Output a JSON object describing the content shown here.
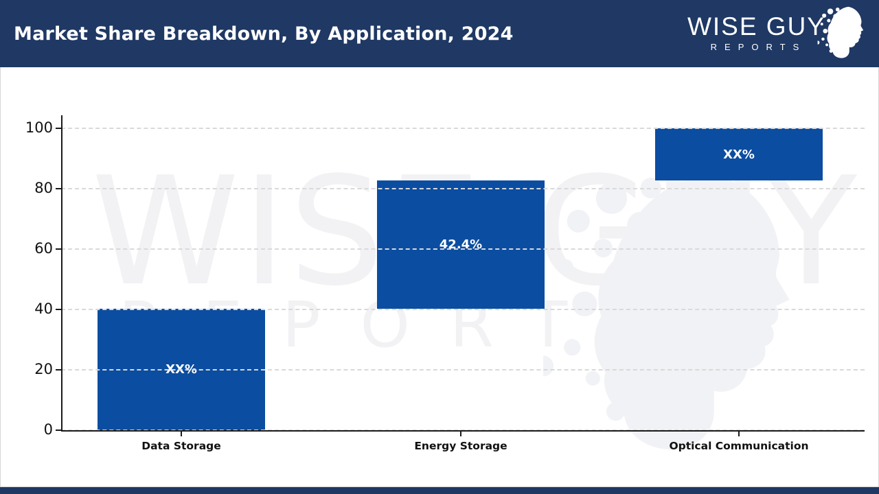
{
  "header": {
    "title": "Market Share Breakdown, By Application, 2024",
    "bg_color": "#1f3864",
    "logo": {
      "line1": "WISE GUY",
      "line2": "REPORTS"
    }
  },
  "watermark": {
    "line1": "WISE GUY",
    "line2": "REPORTS"
  },
  "chart_data": {
    "type": "bar",
    "subtype": "waterfall-stacked",
    "title": "Market Share Breakdown, By Application, 2024",
    "xlabel": "",
    "ylabel": "",
    "categories": [
      "Data Storage",
      "Energy Storage",
      "Optical Communication"
    ],
    "segments": [
      {
        "category": "Data Storage",
        "start": 0,
        "end": 40.3,
        "label": "XX%"
      },
      {
        "category": "Energy Storage",
        "start": 40.3,
        "end": 82.7,
        "label": "42.4%"
      },
      {
        "category": "Optical Communication",
        "start": 82.7,
        "end": 100,
        "label": "XX%"
      }
    ],
    "bar_labels": [
      "XX%",
      "42.4%",
      "XX%"
    ],
    "yticks": [
      0,
      20,
      40,
      60,
      80,
      100
    ],
    "ylim": [
      0,
      105
    ],
    "grid": "horizontal-dashed",
    "legend": "none",
    "bar_color": "#0b4da1",
    "grid_color": "#d9d9d9",
    "axis_color": "#1a1a1a"
  }
}
